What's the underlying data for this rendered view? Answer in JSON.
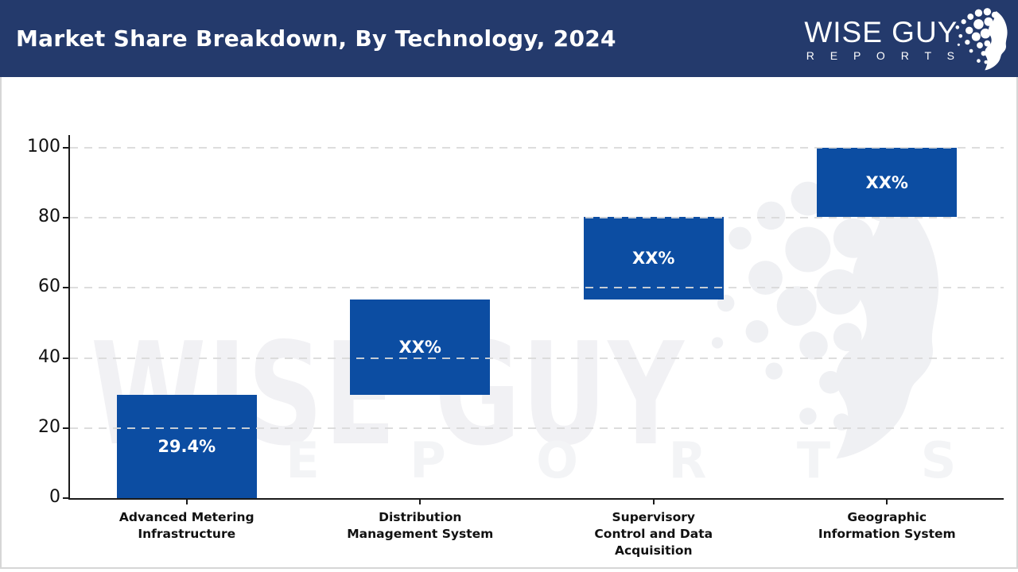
{
  "header": {
    "title": "Market Share Breakdown, By Technology, 2024",
    "logo": {
      "line1": "WISE GUY",
      "line2": "R E P O R T S"
    }
  },
  "watermark": {
    "line1": "WISE GUY",
    "line2": "R E P O R T S"
  },
  "colors": {
    "header_bg": "#243A6C",
    "bar": "#0C4DA2",
    "bar_label": "#FFFFFF",
    "grid": "#D9D9D9",
    "axis": "#1A1A1A",
    "frame_border": "#D6D6D6",
    "watermark": "#F1F1F4"
  },
  "chart_data": {
    "type": "bar",
    "subtype": "waterfall",
    "title": "Market Share Breakdown, By Technology, 2024",
    "categories": [
      "Advanced Metering Infrastructure",
      "Distribution Management System",
      "Supervisory Control and Data Acquisition",
      "Geographic Information System"
    ],
    "category_lines": [
      [
        "Advanced Metering",
        "Infrastructure"
      ],
      [
        "Distribution",
        "Management System"
      ],
      [
        "Supervisory",
        "Control and Data",
        "Acquisition"
      ],
      [
        "Geographic",
        "Information System"
      ]
    ],
    "segments": [
      {
        "base": 0,
        "top": 29.4,
        "label": "29.4%"
      },
      {
        "base": 29.4,
        "top": 56.6,
        "label": "XX%"
      },
      {
        "base": 56.6,
        "top": 80.2,
        "label": "XX%"
      },
      {
        "base": 80.2,
        "top": 100,
        "label": "XX%"
      }
    ],
    "yticks": [
      0,
      20,
      40,
      60,
      80,
      100
    ],
    "ylim": [
      0,
      104
    ],
    "xlabel": "",
    "ylabel": "",
    "grid": "horizontal-dashed",
    "legend": "none"
  }
}
